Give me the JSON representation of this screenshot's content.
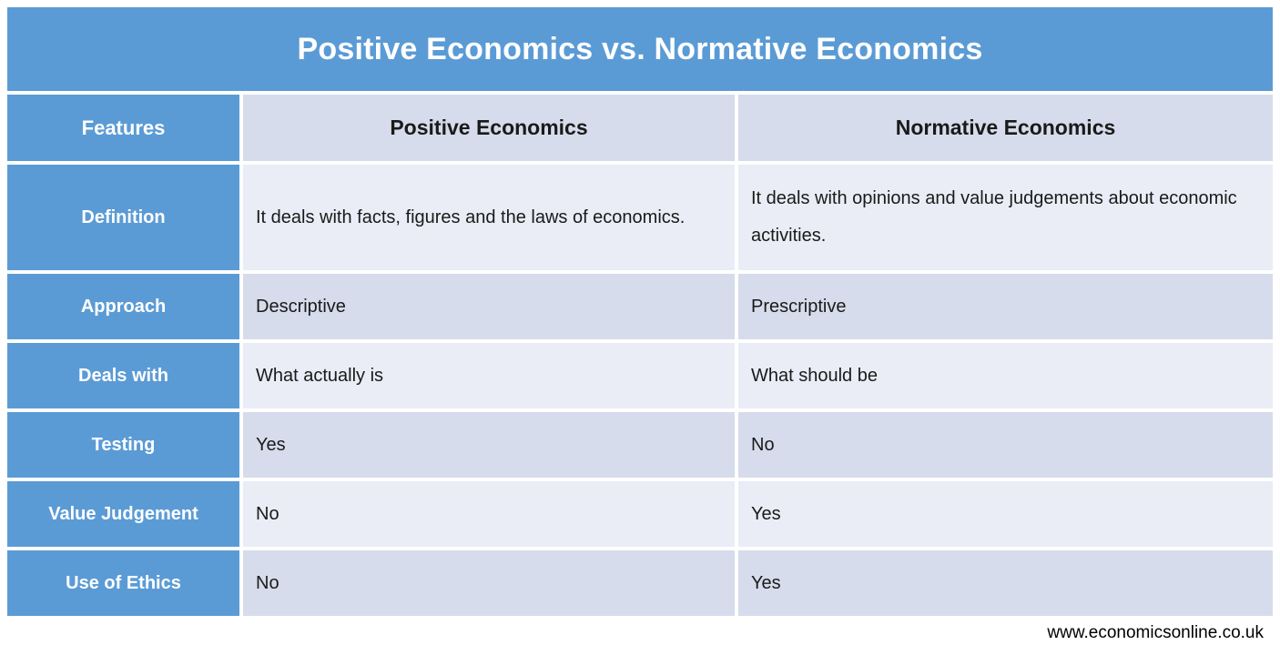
{
  "title": "Positive Economics vs. Normative Economics",
  "table": {
    "feature_header": "Features",
    "columns": [
      "Positive Economics",
      "Normative Economics"
    ],
    "rows": [
      {
        "feature": "Definition",
        "positive": "It deals with facts, figures and the laws of economics.",
        "normative": "It deals with opinions and value judgements about economic activities."
      },
      {
        "feature": "Approach",
        "positive": "Descriptive",
        "normative": "Prescriptive"
      },
      {
        "feature": "Deals with",
        "positive": "What actually is",
        "normative": "What should be"
      },
      {
        "feature": "Testing",
        "positive": "Yes",
        "normative": "No"
      },
      {
        "feature": "Value Judgement",
        "positive": "No",
        "normative": "Yes"
      },
      {
        "feature": "Use of Ethics",
        "positive": "No",
        "normative": "Yes"
      }
    ]
  },
  "footer": {
    "website": "www.economicsonline.co.uk"
  },
  "colors": {
    "banner_blue": "#5B9BD5",
    "row_light": "#EAEDF6",
    "row_dark": "#D6DCEB",
    "text_dark": "#1A1A1A",
    "text_white": "#FFFFFF"
  }
}
